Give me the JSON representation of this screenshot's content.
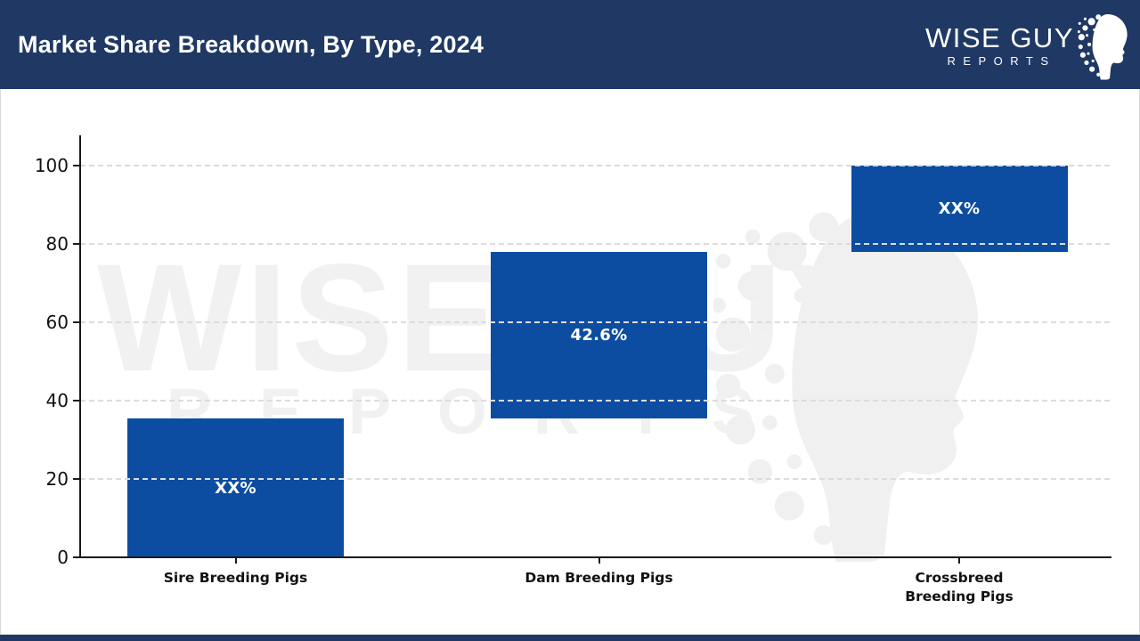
{
  "header": {
    "title": "Market Share Breakdown, By Type, 2024",
    "logo": {
      "line1": "WISE GUY",
      "line2": "REPORTS"
    }
  },
  "watermark": {
    "line1": "WISE GUY",
    "line2": "REPORTS"
  },
  "colors": {
    "header_bg": "#1f3864",
    "bar": "#0d4da1",
    "grid": "#dcdcdc",
    "watermark": "#f1f1f1",
    "bar_label": "#ffffff",
    "axis_text": "#111111"
  },
  "chart_data": {
    "type": "bar",
    "subtype": "waterfall",
    "title": "Market Share Breakdown, By Type, 2024",
    "xlabel": "",
    "ylabel": "",
    "ylim": [
      0,
      100
    ],
    "yticks": [
      0,
      20,
      40,
      60,
      80,
      100
    ],
    "grid": "horizontal dashed",
    "legend": "none",
    "categories": [
      "Sire Breeding Pigs",
      "Dam Breeding Pigs",
      "Crossbreed Breeding Pigs"
    ],
    "bars": [
      {
        "category_lines": [
          "Sire Breeding Pigs"
        ],
        "base": 0,
        "value": 35.4,
        "top": 35.4,
        "label": "XX%"
      },
      {
        "category_lines": [
          "Dam Breeding Pigs"
        ],
        "base": 35.4,
        "value": 42.6,
        "top": 78.0,
        "label": "42.6%"
      },
      {
        "category_lines": [
          "Crossbreed",
          "Breeding Pigs"
        ],
        "base": 78.0,
        "value": 22.0,
        "top": 100.0,
        "label": "XX%"
      }
    ]
  }
}
